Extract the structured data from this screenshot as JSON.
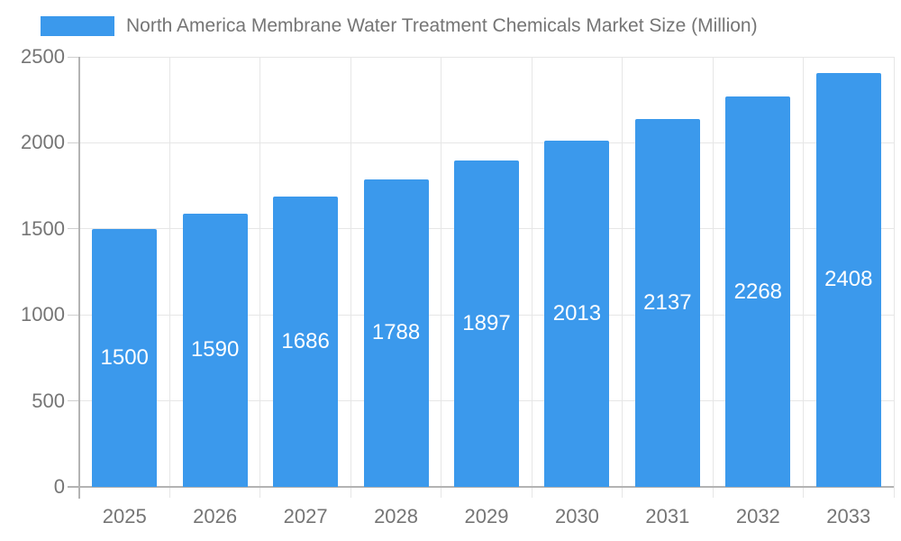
{
  "chart_data": {
    "type": "bar",
    "title": "North America Membrane Water Treatment Chemicals Market Size (Million)",
    "categories": [
      "2025",
      "2026",
      "2027",
      "2028",
      "2029",
      "2030",
      "2031",
      "2032",
      "2033"
    ],
    "values": [
      1500,
      1590,
      1686,
      1788,
      1897,
      2013,
      2137,
      2268,
      2408
    ],
    "xlabel": "",
    "ylabel": "",
    "ylim": [
      0,
      2500
    ],
    "yticks": [
      0,
      500,
      1000,
      1500,
      2000,
      2500
    ],
    "grid": true,
    "legend_position": "top-left",
    "bar_labels": "white, centered inside each bar",
    "colors": {
      "bar": "#3b99ec",
      "axis_text": "#757575",
      "gridline": "#e6e6e6",
      "axis_line": "#b3b3b3",
      "tick": "#cfcfcf",
      "value_label": "#ffffff",
      "background": "#ffffff"
    }
  }
}
